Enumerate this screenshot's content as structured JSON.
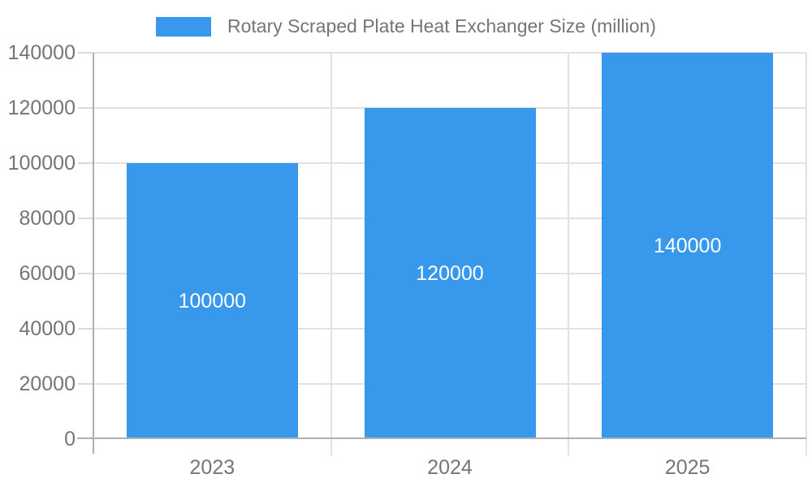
{
  "chart_data": {
    "type": "bar",
    "title": "Rotary Scraped Plate Heat Exchanger Size (million)",
    "categories": [
      "2023",
      "2024",
      "2025"
    ],
    "values": [
      100000,
      120000,
      140000
    ],
    "data_labels": [
      "100000",
      "120000",
      "140000"
    ],
    "xlabel": "",
    "ylabel": "",
    "ylim": [
      0,
      140000
    ],
    "ytick_step": 20000,
    "ytick_labels": [
      "0",
      "20000",
      "40000",
      "60000",
      "80000",
      "100000",
      "120000",
      "140000"
    ],
    "grid": true,
    "legend_position": "top",
    "colors": {
      "bar": "#3898EC",
      "axis_text": "#757575",
      "bar_label_text": "#FFFFFF",
      "gridline": "#E2E2E2",
      "axis_line": "#B0B0B0",
      "tick_line": "#DADADA",
      "background": "#FFFFFF"
    }
  }
}
